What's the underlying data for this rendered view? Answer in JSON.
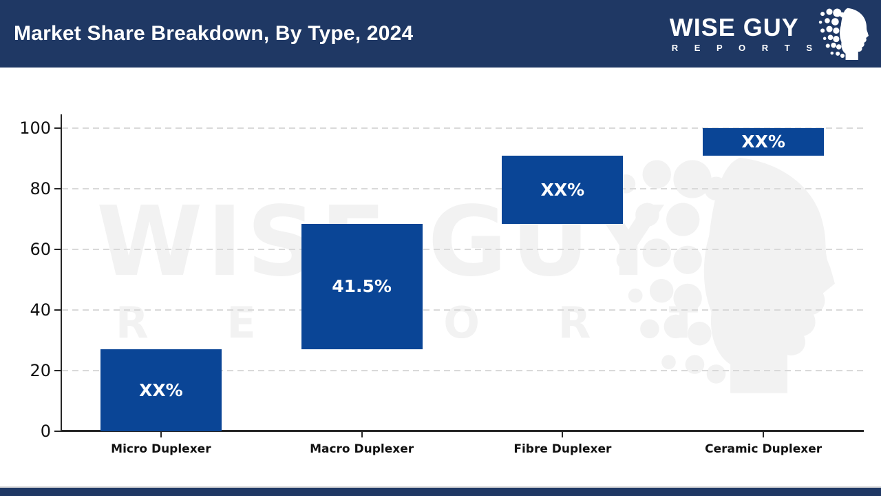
{
  "header": {
    "title": "Market Share Breakdown, By Type, 2024",
    "logo": {
      "line1": "WISE GUY",
      "line2": "R E P O R T S"
    }
  },
  "watermark": {
    "line1": "WISE GUY",
    "line2": "R E P O R T S"
  },
  "colors": {
    "header_bg": "#1f3864",
    "bar": "#0a4596",
    "grid": "#d9d9d9",
    "axis": "#262626",
    "watermark": "#f2f2f2"
  },
  "chart_data": {
    "type": "bar",
    "subtype": "floating-waterfall-segments",
    "title": "Market Share Breakdown, By Type, 2024",
    "categories": [
      "Micro Duplexer",
      "Macro Duplexer",
      "Fibre Duplexer",
      "Ceramic Duplexer"
    ],
    "series": [
      {
        "name": "Market Share %",
        "ranges": [
          [
            0,
            27
          ],
          [
            27,
            68.5
          ],
          [
            68.5,
            91
          ],
          [
            91,
            100
          ]
        ],
        "segment_sizes": [
          27,
          41.5,
          22.5,
          9
        ]
      }
    ],
    "bar_labels": [
      "XX%",
      "41.5%",
      "XX%",
      "XX%"
    ],
    "xlabel": "",
    "ylabel": "",
    "ylim": [
      0,
      100
    ],
    "yticks": [
      0,
      20,
      40,
      60,
      80,
      100
    ],
    "grid": "horizontal-dashed",
    "legend": "none"
  }
}
